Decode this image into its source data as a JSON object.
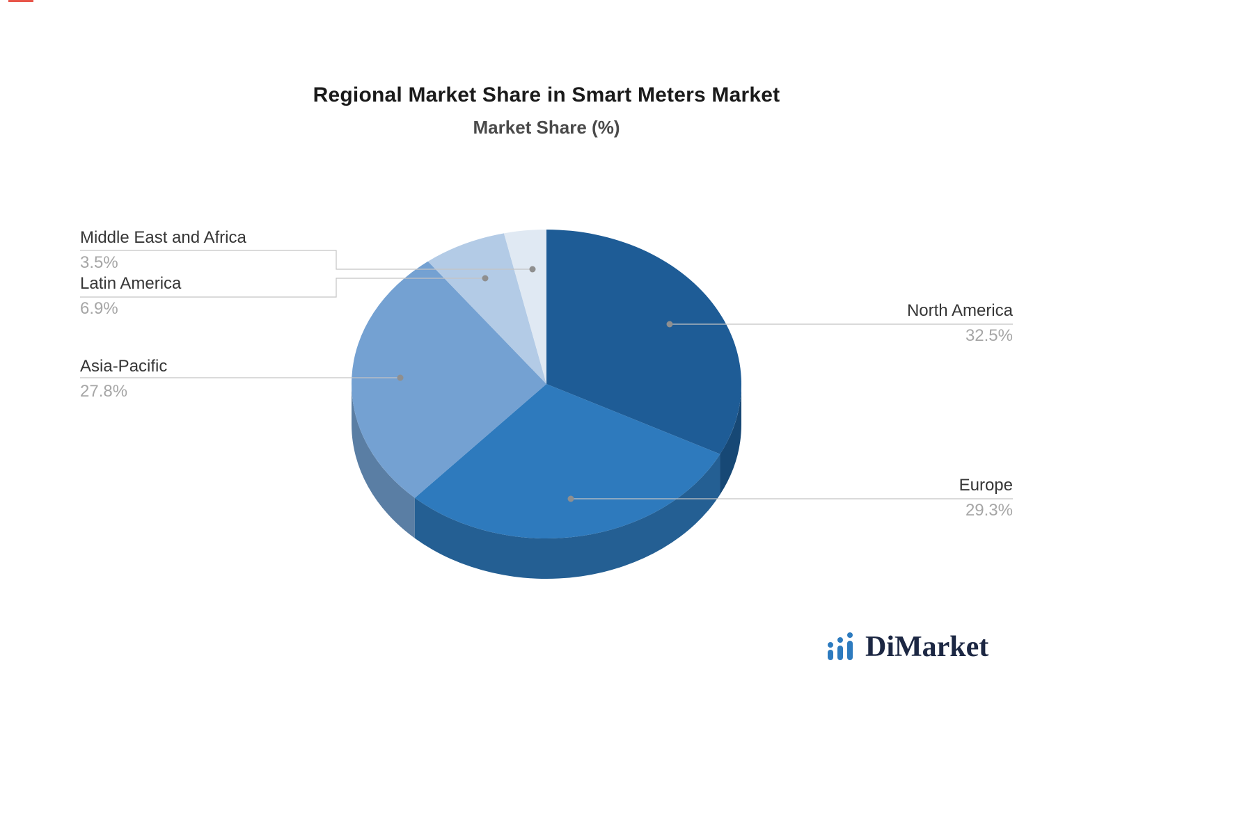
{
  "page": {
    "background": "#ffffff"
  },
  "chart_data": {
    "type": "pie",
    "style": "3d-pie",
    "title": "Regional Market Share in Smart Meters Market",
    "subtitle": "Market Share (%)",
    "unit": "%",
    "direction": "clockwise",
    "start_angle_deg": 0,
    "legend": "none",
    "label_style": "outside-leader-lines",
    "leader_line_color": "#c4c4c4",
    "leader_dot_color": "#8f8f8f",
    "slices": [
      {
        "label": "North America",
        "value": 32.5,
        "display": "32.5%",
        "color": "#1e5c96"
      },
      {
        "label": "Europe",
        "value": 29.3,
        "display": "29.3%",
        "color": "#2e7abd"
      },
      {
        "label": "Asia-Pacific",
        "value": 27.8,
        "display": "27.8%",
        "color": "#74a1d2"
      },
      {
        "label": "Latin America",
        "value": 6.9,
        "display": "6.9%",
        "color": "#b3cbe6"
      },
      {
        "label": "Middle East and Africa",
        "value": 3.5,
        "display": "3.5%",
        "color": "#e0e9f3"
      }
    ]
  },
  "brand": {
    "name": "DiMarket",
    "icon": "bar-chart-logo-icon",
    "accent_color": "#2d7bbf",
    "text_color": "#1c2743"
  }
}
